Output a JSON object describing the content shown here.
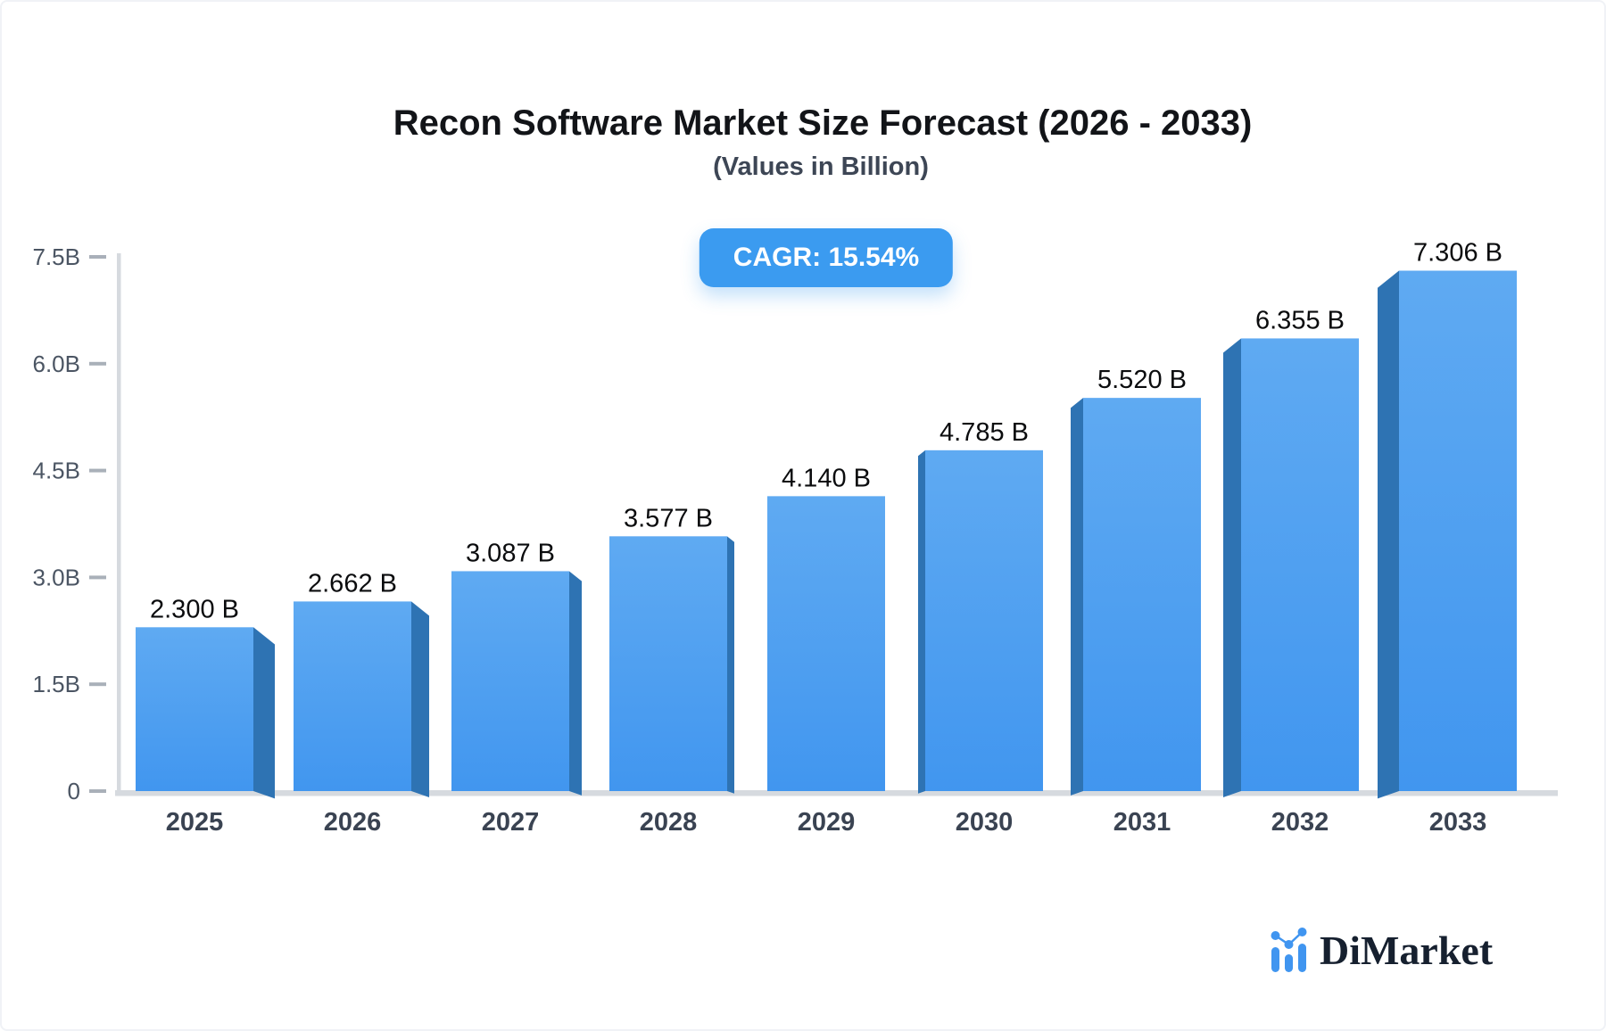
{
  "header": {
    "title": "Recon Software Market Size Forecast (2026 - 2033)",
    "subtitle": "(Values in Billion)",
    "badge": "CAGR: 15.54%"
  },
  "chart_data": {
    "type": "bar",
    "title": "Recon Software Market Size Forecast (2026 - 2033)",
    "subtitle": "(Values in Billion)",
    "categories": [
      "2025",
      "2026",
      "2027",
      "2028",
      "2029",
      "2030",
      "2031",
      "2032",
      "2033"
    ],
    "values": [
      2.3,
      2.662,
      3.087,
      3.577,
      4.14,
      4.785,
      5.52,
      6.355,
      7.306
    ],
    "bar_labels": [
      "2.300 B",
      "2.662 B",
      "3.087 B",
      "3.577 B",
      "4.140 B",
      "4.785 B",
      "5.520 B",
      "6.355 B",
      "7.306 B"
    ],
    "xlabel": "",
    "ylabel": "",
    "ylim": [
      0,
      7.5
    ],
    "yticks": [
      {
        "value": 0,
        "label": "0"
      },
      {
        "value": 1.5,
        "label": "1.5B"
      },
      {
        "value": 3.0,
        "label": "3.0B"
      },
      {
        "value": 4.5,
        "label": "4.5B"
      },
      {
        "value": 6.0,
        "label": "6.0B"
      },
      {
        "value": 7.5,
        "label": "7.5B"
      }
    ],
    "grid": false,
    "legend": "none",
    "annotation": "CAGR: 15.54%",
    "bar_style": "3d-perspective-blue"
  },
  "branding": {
    "logo_text": "DiMarket",
    "logo_icon": "mini-bar-line-chart-icon"
  },
  "colors": {
    "background": "#FFFFFF",
    "bar_face_top": "#5FAAF2",
    "bar_face_bottom": "#4196EF",
    "bar_side": "#2E73B3",
    "badge_bg": "#3B9BF0",
    "badge_text": "#FFFFFF",
    "axis_line": "#D6DADF",
    "tick": "#A9B0B9",
    "tick_label": "#4B5563",
    "year_label": "#3A4352",
    "value_label": "#0B0C0E",
    "title": "#121418",
    "subtitle": "#3D4655",
    "logo_blue": "#4095F0",
    "logo_text_color": "#16202F"
  }
}
